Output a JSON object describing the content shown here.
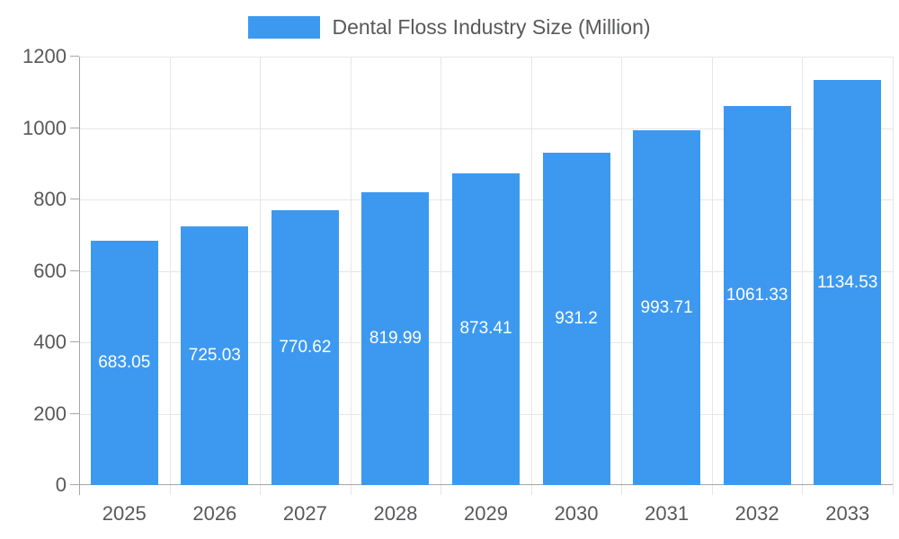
{
  "chart_data": {
    "type": "bar",
    "title": "Dental Floss Industry Size (Million)",
    "categories": [
      "2025",
      "2026",
      "2027",
      "2028",
      "2029",
      "2030",
      "2031",
      "2032",
      "2033"
    ],
    "values": [
      683.05,
      725.03,
      770.62,
      819.99,
      873.41,
      931.2,
      993.71,
      1061.33,
      1134.53
    ],
    "ylabel": "",
    "xlabel": "",
    "ylim": [
      0,
      1200
    ],
    "ytick_step": 200,
    "ytick_labels": [
      "0",
      "200",
      "400",
      "600",
      "800",
      "1000",
      "1200"
    ],
    "legend_position": "top",
    "grid": true,
    "value_labels_position": "center-of-bar",
    "colors": {
      "bar": "#3d99f0",
      "value_label": "#ffffff",
      "grid": "#e6e6e6",
      "axis_line": "#a6a6a6",
      "axis_text": "#57585a",
      "title_text": "#58595b"
    }
  }
}
